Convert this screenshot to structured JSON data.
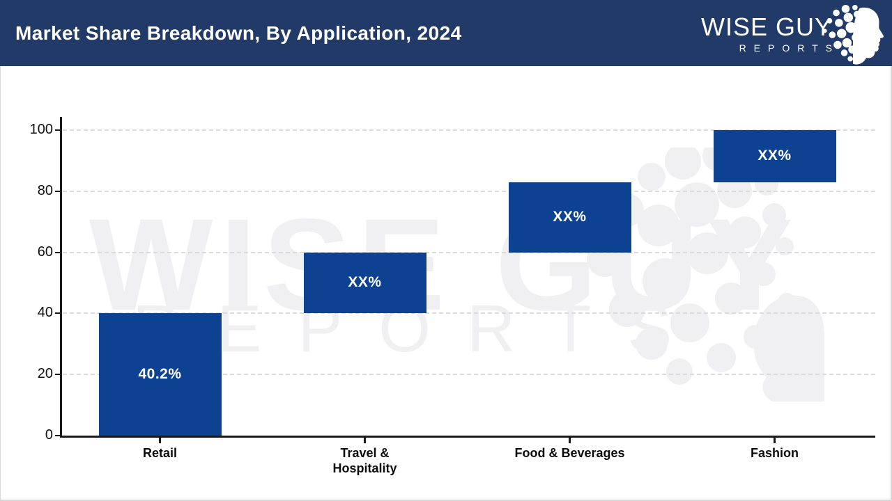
{
  "header": {
    "title": "Market Share Breakdown, By Application, 2024",
    "logo": {
      "name_line": "WISE GUY",
      "reports_line": "REPORTS"
    }
  },
  "watermark": {
    "name_line": "WISE GUY",
    "reports_line": "REPORTS"
  },
  "chart_data": {
    "type": "bar",
    "variant": "waterfall",
    "title": "Market Share Breakdown, By Application, 2024",
    "categories": [
      "Retail",
      "Travel &\nHospitality",
      "Food & Beverages",
      "Fashion"
    ],
    "segments": [
      {
        "category": "Retail",
        "start": 0,
        "end": 40.2,
        "label": "40.2%"
      },
      {
        "category": "Travel &\nHospitality",
        "start": 40.2,
        "end": 60,
        "label": "XX%"
      },
      {
        "category": "Food & Beverages",
        "start": 60,
        "end": 83,
        "label": "XX%"
      },
      {
        "category": "Fashion",
        "start": 83,
        "end": 100,
        "label": "XX%"
      }
    ],
    "ylim": [
      0,
      100
    ],
    "yticks": [
      0,
      20,
      40,
      60,
      80,
      100
    ],
    "grid": "horizontal-dashed",
    "legend": "none"
  },
  "colors": {
    "header_bg": "#223a68",
    "bar": "#0d4191",
    "axis": "#1a1a1a",
    "grid": "#dadada",
    "watermark": "#f0f0f2"
  }
}
